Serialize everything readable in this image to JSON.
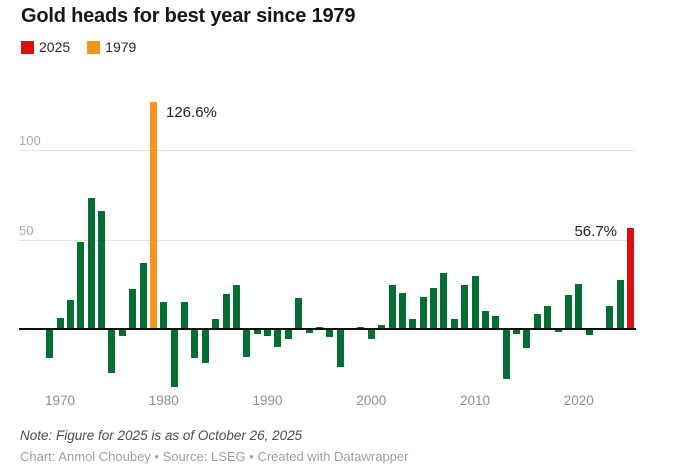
{
  "title": "Gold heads for best year since 1979",
  "legend": {
    "items": [
      {
        "label": "2025",
        "color": "#dc0f0f"
      },
      {
        "label": "1979",
        "color": "#f8931d"
      }
    ]
  },
  "chart_data": {
    "type": "bar",
    "title": "Gold heads for best year since 1979",
    "unit": "%",
    "years": [
      1969,
      1970,
      1971,
      1972,
      1973,
      1974,
      1975,
      1976,
      1977,
      1978,
      1979,
      1980,
      1981,
      1982,
      1983,
      1984,
      1985,
      1986,
      1987,
      1988,
      1989,
      1990,
      1991,
      1992,
      1993,
      1994,
      1995,
      1996,
      1997,
      1998,
      1999,
      2000,
      2001,
      2002,
      2003,
      2004,
      2005,
      2006,
      2007,
      2008,
      2009,
      2010,
      2011,
      2012,
      2013,
      2014,
      2015,
      2016,
      2017,
      2018,
      2019,
      2020,
      2021,
      2022,
      2023,
      2024,
      2025
    ],
    "values": [
      -16,
      6,
      16.4,
      48.7,
      73,
      66,
      -24.8,
      -4.1,
      22.5,
      37,
      126.6,
      15.2,
      -32.6,
      14.9,
      -16.3,
      -19.2,
      5.8,
      19.5,
      24.5,
      -15.7,
      -2.8,
      -3.7,
      -9.8,
      -5.7,
      17.3,
      -2.2,
      1,
      -4.6,
      -21.4,
      -0.8,
      0.9,
      -5.4,
      2.5,
      24.8,
      19.9,
      5.5,
      17.9,
      23.2,
      31.1,
      5.8,
      24.8,
      29.7,
      10.1,
      7.1,
      -27.8,
      -2.8,
      -10.4,
      8.6,
      13.1,
      -1.9,
      18.9,
      25.1,
      -3.6,
      -0.3,
      13.1,
      27.2,
      56.7
    ],
    "bar_colors": {
      "default": "#046e33",
      "1979": "#f8931d",
      "2025": "#dc0f0f"
    },
    "annotations": [
      {
        "year": 1979,
        "label": "126.6%",
        "side": "right"
      },
      {
        "year": 2025,
        "label": "56.7%",
        "side": "left"
      }
    ],
    "y_ticks": [
      "50",
      "100"
    ],
    "y_tick_values": [
      50,
      100
    ],
    "x_ticks": [
      "1970",
      "1980",
      "1990",
      "2000",
      "2010",
      "2020"
    ],
    "x_tick_values": [
      1970,
      1980,
      1990,
      2000,
      2010,
      2020
    ],
    "ylim": [
      -35,
      135
    ],
    "grid": true,
    "legend_position": "top-left"
  },
  "note": "Note: Figure for 2025 is as of October 26, 2025",
  "credit": "Chart: Anmol Choubey • Source: LSEG • Created with Datawrapper"
}
